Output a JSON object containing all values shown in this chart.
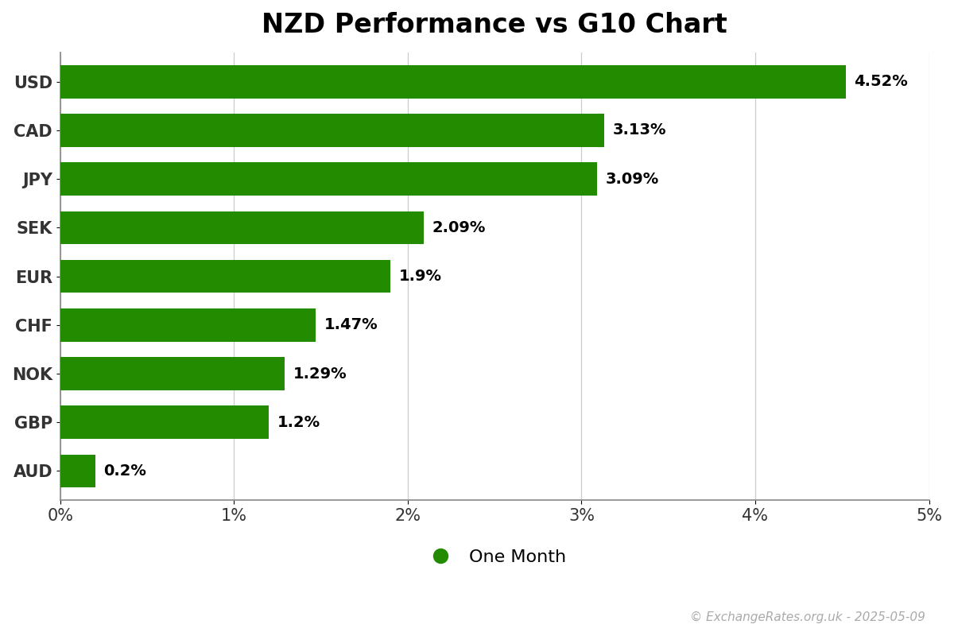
{
  "title": "NZD Performance vs G10 Chart",
  "currencies": [
    "AUD",
    "GBP",
    "NOK",
    "CHF",
    "EUR",
    "SEK",
    "JPY",
    "CAD",
    "USD"
  ],
  "values": [
    0.2,
    1.2,
    1.29,
    1.47,
    1.9,
    2.09,
    3.09,
    3.13,
    4.52
  ],
  "labels": [
    "0.2%",
    "1.2%",
    "1.29%",
    "1.47%",
    "1.9%",
    "2.09%",
    "3.09%",
    "3.13%",
    "4.52%"
  ],
  "bar_color": "#228B00",
  "background_color": "#ffffff",
  "title_fontsize": 24,
  "label_fontsize": 14,
  "tick_fontsize": 15,
  "legend_label": "One Month",
  "legend_fontsize": 16,
  "watermark": "© ExchangeRates.org.uk - 2025-05-09",
  "xlim": [
    0,
    5.0
  ],
  "xticks": [
    0,
    1,
    2,
    3,
    4,
    5
  ],
  "xticklabels": [
    "0%",
    "1%",
    "2%",
    "3%",
    "4%",
    "5%"
  ],
  "bar_height": 0.68,
  "grid_color": "#cccccc"
}
